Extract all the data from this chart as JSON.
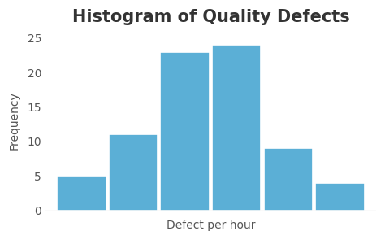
{
  "title": "Histogram of Quality Defects",
  "xlabel": "Defect per hour",
  "ylabel": "Frequency",
  "bar_heights": [
    5,
    11,
    23,
    24,
    9,
    4
  ],
  "bar_color": "#5BAFD6",
  "bar_edge_color": "white",
  "ylim": [
    0,
    26
  ],
  "yticks": [
    0,
    5,
    10,
    15,
    20,
    25
  ],
  "num_bars": 6,
  "title_fontsize": 15,
  "label_fontsize": 10,
  "tick_fontsize": 10,
  "background_color": "#ffffff",
  "bar_linewidth": 1.2,
  "bar_width": 0.95,
  "title_color": "#333333",
  "label_color": "#555555",
  "tick_color": "#555555"
}
